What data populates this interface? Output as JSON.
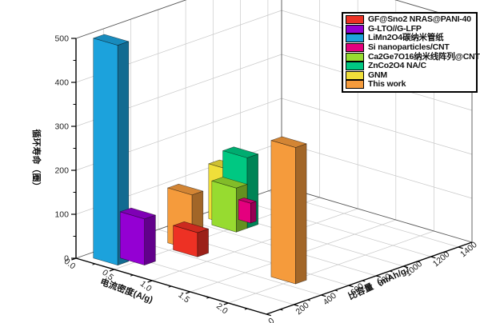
{
  "figure": {
    "kind": "3d-bar-comparison-chart",
    "background": "#ffffff",
    "title": ""
  },
  "chart_data": {
    "type": "bar",
    "projection": "3d",
    "grid": true,
    "legend_position": "top-right",
    "axes": {
      "z": {
        "title": "循环寿命（圈）",
        "min": 0,
        "max": 500,
        "tick_values": [
          0,
          100,
          200,
          300,
          400,
          500
        ],
        "tick_labels": [
          "0",
          "100",
          "200",
          "300",
          "400",
          "500"
        ],
        "minor_step": 50
      },
      "x": {
        "title": "电流密度(A/g)",
        "min": 0,
        "max": 2.5,
        "tick_values": [
          0,
          0.5,
          1.0,
          1.5,
          2.0
        ],
        "tick_labels": [
          "0.0",
          "0.5",
          "1.0",
          "1.5",
          "2.0"
        ],
        "minor_step": 0.25
      },
      "y": {
        "title": "比容量（mAh/g）",
        "min": 0,
        "max": 1500,
        "tick_values": [
          0,
          200,
          400,
          600,
          800,
          1000,
          1200,
          1400
        ],
        "tick_labels": [
          "0",
          "200",
          "400",
          "600",
          "800",
          "1000",
          "1200",
          "1400"
        ],
        "minor_step": 100
      }
    },
    "legend": [
      {
        "label": "GF@Sno2 NRAS@PANI-40",
        "color": "#ED3124"
      },
      {
        "label": "G-LTO//G-LFP",
        "color": "#9400D3"
      },
      {
        "label": "LiMn2O4碳纳米管纸",
        "color": "#1CA2DC"
      },
      {
        "label": "Si nanoparticles/CNT",
        "color": "#E4007E"
      },
      {
        "label": "Ca2Ge7O16纳米线阵列@CNT",
        "color": "#97DB30"
      },
      {
        "label": "ZnCo2O4 NA/C",
        "color": "#00C882"
      },
      {
        "label": "GNM",
        "color": "#F0DF3A"
      },
      {
        "label": "This work",
        "color": "#F59B3C"
      }
    ],
    "bars": [
      {
        "series": "LiMn2O4碳纳米管纸",
        "color": "#1CA2DC",
        "current_density_A_per_g": 0.28,
        "capacity_mAh_per_g": 100,
        "cycle_life": 500
      },
      {
        "series": "G-LTO//G-LFP",
        "color": "#9400D3",
        "current_density_A_per_g": 0.47,
        "capacity_mAh_per_g": 190,
        "cycle_life": 105
      },
      {
        "series": "GNM",
        "color": "#F0DF3A",
        "current_density_A_per_g": 0.3,
        "capacity_mAh_per_g": 930,
        "cycle_life": 125
      },
      {
        "series": "ZnCo2O4 NA/C",
        "color": "#00C882",
        "current_density_A_per_g": 0.45,
        "capacity_mAh_per_g": 950,
        "cycle_life": 160
      },
      {
        "series": "Ca2Ge7O16纳米线阵列@CNT",
        "color": "#97DB30",
        "current_density_A_per_g": 0.45,
        "capacity_mAh_per_g": 870,
        "cycle_life": 100
      },
      {
        "series": "Si nanoparticles/CNT",
        "color": "#E4007E",
        "current_density_A_per_g": 0.45,
        "capacity_mAh_per_g": 1000,
        "cycle_life": 45,
        "w": 0.16,
        "d": 40
      },
      {
        "series": "This work",
        "color": "#F59B3C",
        "current_density_A_per_g": 0.5,
        "capacity_mAh_per_g": 520,
        "cycle_life": 125
      },
      {
        "series": "GF@Sno2 NRAS@PANI-40",
        "color": "#ED3124",
        "current_density_A_per_g": 0.68,
        "capacity_mAh_per_g": 460,
        "cycle_life": 55
      },
      {
        "series": "This work",
        "color": "#F59B3C",
        "current_density_A_per_g": 1.93,
        "capacity_mAh_per_g": 480,
        "cycle_life": 310
      }
    ]
  }
}
